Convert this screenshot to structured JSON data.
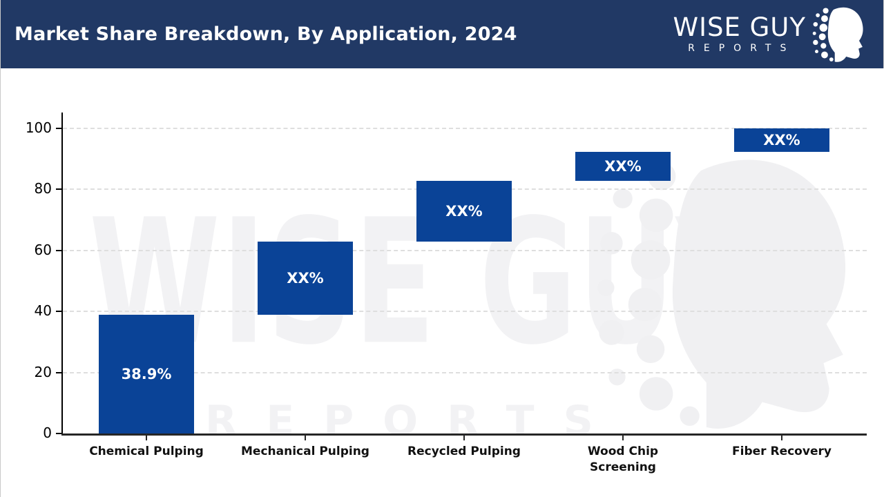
{
  "header": {
    "title": "Market Share Breakdown, By Application, 2024",
    "logo": {
      "line1": "WISE GUY",
      "line2": "REPORTS",
      "face_icon": "dotted-head-profile-icon"
    }
  },
  "watermark": {
    "line1": "WISE GUY",
    "line2": "REPORTS",
    "face_icon": "dotted-head-profile-watermark"
  },
  "colors": {
    "header_bg": "#213965",
    "bar": "#0a4397",
    "bar_label": "#ffffff",
    "grid": "#dedede",
    "y_axis": "#000000",
    "x_axis": "#262626",
    "tick_label": "#111111",
    "watermark": "#f2f2f4",
    "panel_border": "#c9c9c9"
  },
  "chart_data": {
    "type": "bar",
    "subtype": "waterfall",
    "title": "Market Share Breakdown, By Application, 2024",
    "categories": [
      "Chemical Pulping",
      "Mechanical Pulping",
      "Recycled Pulping",
      "Wood Chip\nScreening",
      "Fiber Recovery"
    ],
    "series": [
      {
        "name": "Market Share",
        "starts": [
          0,
          38.9,
          63.0,
          82.8,
          92.2
        ],
        "ends": [
          38.9,
          63.0,
          82.8,
          92.2,
          100
        ],
        "values": [
          38.9,
          24.1,
          19.8,
          9.4,
          7.8
        ],
        "labels": [
          "38.9%",
          "XX%",
          "XX%",
          "XX%",
          "XX%"
        ]
      }
    ],
    "xlabel": "",
    "ylabel": "",
    "yticks": [
      0,
      20,
      40,
      60,
      80,
      100
    ],
    "ylim": [
      0,
      105
    ],
    "grid": "horizontal-dashed",
    "legend": false,
    "bar_color": "#0a4397",
    "label_position": "center-inside"
  }
}
